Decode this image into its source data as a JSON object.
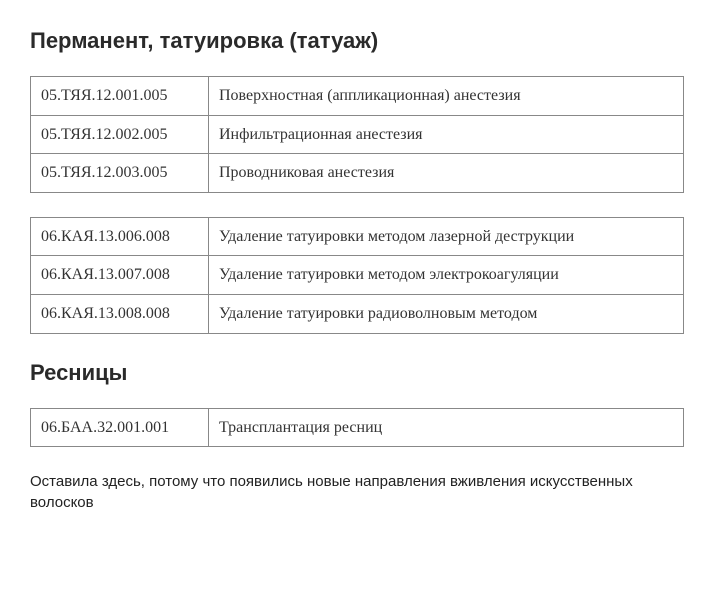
{
  "sections": [
    {
      "heading": "Перманент, татуировка (татуаж)",
      "tables": [
        {
          "rows": [
            {
              "code": "05.ТЯЯ.12.001.005",
              "desc": "Поверхностная (аппликационная) анестезия"
            },
            {
              "code": "05.ТЯЯ.12.002.005",
              "desc": "Инфильтрационная анестезия"
            },
            {
              "code": "05.ТЯЯ.12.003.005",
              "desc": "Проводниковая анестезия"
            }
          ]
        },
        {
          "rows": [
            {
              "code": "06.КАЯ.13.006.008",
              "desc": "Удаление татуировки методом лазерной деструкции"
            },
            {
              "code": "06.КАЯ.13.007.008",
              "desc": "Удаление татуировки методом электрокоагуляции"
            },
            {
              "code": "06.КАЯ.13.008.008",
              "desc": "Удаление татуировки радиоволновым методом"
            }
          ]
        }
      ]
    },
    {
      "heading": "Ресницы",
      "tables": [
        {
          "rows": [
            {
              "code": "06.БАА.32.001.001",
              "desc": "Трансплантация ресниц"
            }
          ]
        }
      ]
    }
  ],
  "note": "Оставила здесь, потому что появились новые направления вживления искусственных волосков"
}
